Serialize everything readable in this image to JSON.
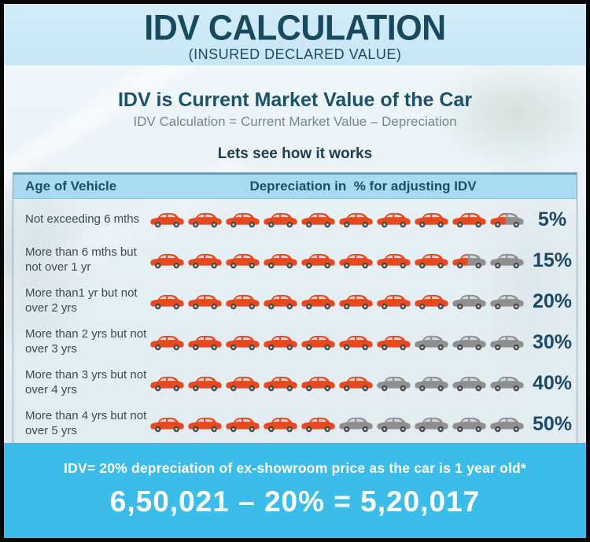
{
  "header": {
    "title": "IDV CALCULATION",
    "subtitle": "(INSURED DECLARED VALUE)"
  },
  "intro": {
    "heading": "IDV is Current Market Value of the Car",
    "formula": "IDV Calculation = Current Market Value – Depreciation",
    "lead_in": "Lets see how it works"
  },
  "table": {
    "col1_header": "Age of Vehicle",
    "col2_header": "Depreciation in  % for adjusting IDV",
    "rows": [
      {
        "label": "Not exceeding 6 mths",
        "percent": "5%",
        "orange_cars": 9,
        "half_cars": 1,
        "gray_cars": 0
      },
      {
        "label": "More than 6 mths but not over 1 yr",
        "percent": "15%",
        "orange_cars": 8,
        "half_cars": 1,
        "gray_cars": 1
      },
      {
        "label": "More than1 yr but not over 2 yrs",
        "percent": "20%",
        "orange_cars": 8,
        "half_cars": 0,
        "gray_cars": 2
      },
      {
        "label": "More than 2 yrs but not over 3 yrs",
        "percent": "30%",
        "orange_cars": 7,
        "half_cars": 0,
        "gray_cars": 3
      },
      {
        "label": "More than 3 yrs but not over 4 yrs",
        "percent": "40%",
        "orange_cars": 6,
        "half_cars": 0,
        "gray_cars": 4
      },
      {
        "label": "More than 4 yrs but not over 5 yrs",
        "percent": "50%",
        "orange_cars": 5,
        "half_cars": 0,
        "gray_cars": 5
      }
    ]
  },
  "footer": {
    "note": "IDV= 20% depreciation of ex-showroom price as the car is 1 year old*",
    "calculation": "6,50,021 – 20% = 5,20,017"
  },
  "colors": {
    "title_navy": "#17495f",
    "heading_blue": "#1c516b",
    "table_header_blue": "#a8dbf2",
    "car_orange": "#e8481d",
    "car_gray": "#8f8f8f",
    "car_window": "#c9dbe3",
    "footer_cyan": "#3cbde9",
    "percent_navy": "#1a4a68"
  },
  "chart_data": {
    "type": "table",
    "title": "Depreciation in % for adjusting IDV",
    "categories": [
      "Not exceeding 6 mths",
      "More than 6 mths but not over 1 yr",
      "More than1 yr but not over 2 yrs",
      "More than 2 yrs but not over 3 yrs",
      "More than 3 yrs but not over 4 yrs",
      "More than 4 yrs but not over 5 yrs"
    ],
    "values": [
      5,
      15,
      20,
      30,
      40,
      50
    ],
    "unit": "%",
    "icon": "car",
    "icons_per_row": 10,
    "icon_breakdown": [
      {
        "orange": 9,
        "half": 1,
        "gray": 0
      },
      {
        "orange": 8,
        "half": 1,
        "gray": 1
      },
      {
        "orange": 8,
        "half": 0,
        "gray": 2
      },
      {
        "orange": 7,
        "half": 0,
        "gray": 3
      },
      {
        "orange": 6,
        "half": 0,
        "gray": 4
      },
      {
        "orange": 5,
        "half": 0,
        "gray": 5
      }
    ],
    "example_calculation": {
      "market_value": "6,50,021",
      "depreciation_percent": "20%",
      "idv": "5,20,017"
    }
  }
}
